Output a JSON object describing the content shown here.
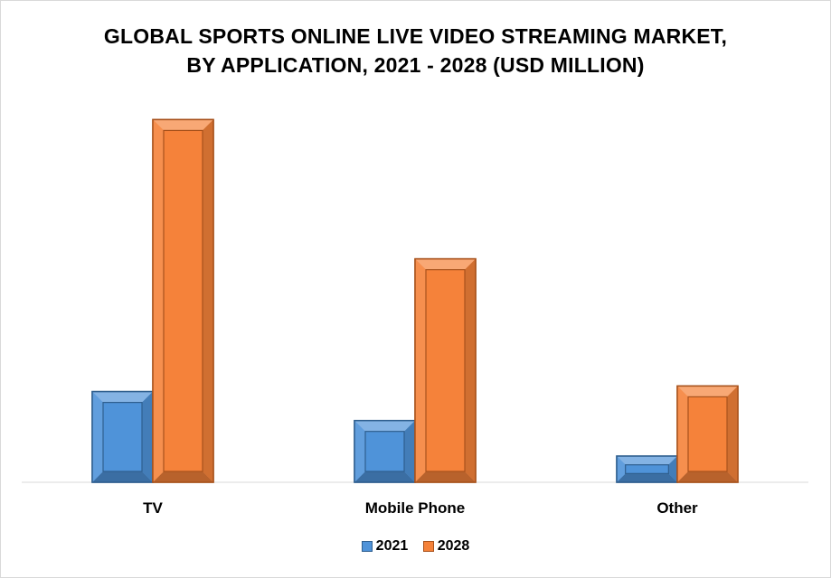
{
  "chart_data": {
    "type": "bar",
    "title_lines": [
      "GLOBAL SPORTS ONLINE LIVE VIDEO STREAMING MARKET,",
      "BY APPLICATION, 2021 - 2028 (USD MILLION)"
    ],
    "categories": [
      "TV",
      "Mobile Phone",
      "Other"
    ],
    "series": [
      {
        "name": "2021",
        "values": [
          97,
          66,
          28
        ],
        "color": "#4f93d9",
        "edge": "#2f5f8f"
      },
      {
        "name": "2028",
        "values": [
          388,
          239,
          103
        ],
        "color": "#f5823a",
        "edge": "#a8521c"
      }
    ],
    "ylim": [
      0,
      400
    ],
    "grid": false,
    "legend_position": "bottom"
  }
}
